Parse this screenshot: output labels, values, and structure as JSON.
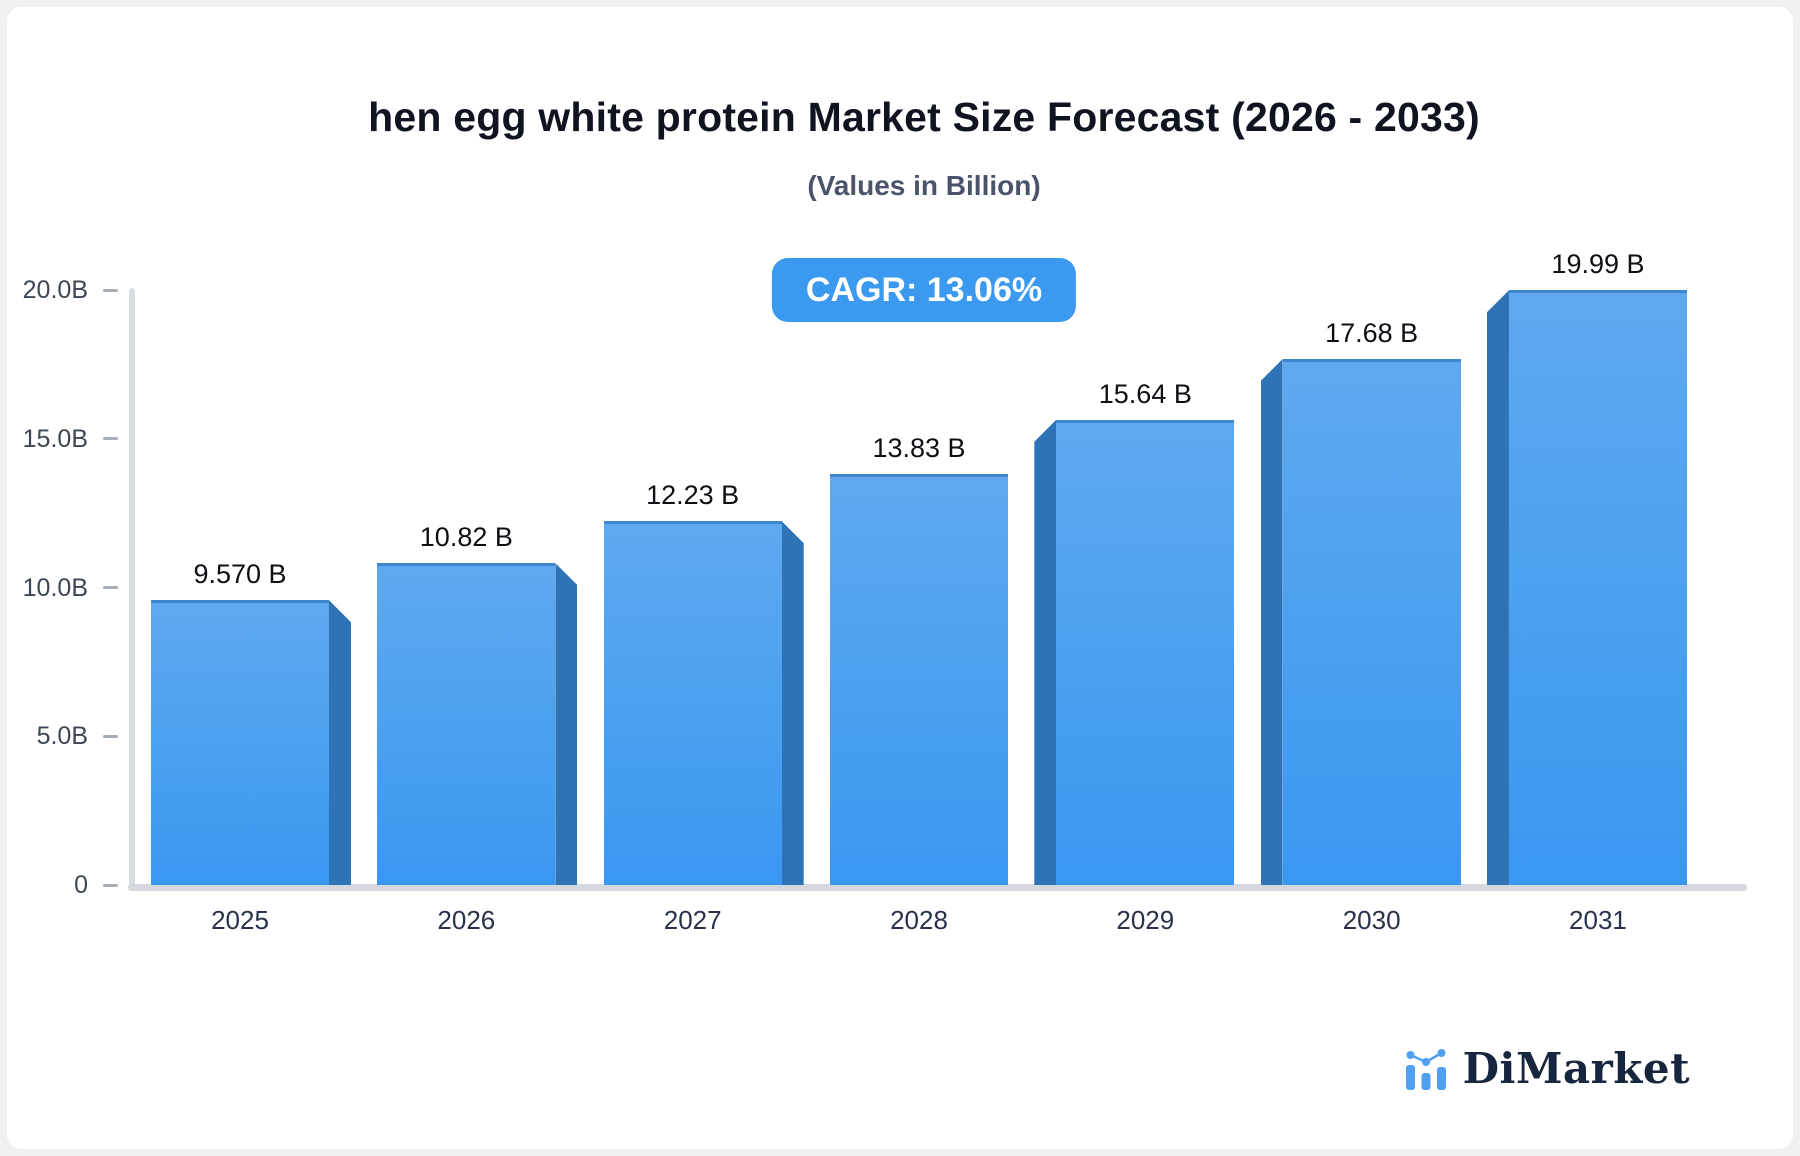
{
  "header": {
    "title": "hen egg white protein Market Size Forecast (2026 - 2033)",
    "subtitle": "(Values in Billion)"
  },
  "badge": {
    "label": "CAGR: 13.06%",
    "bg": "#3b9af0",
    "text_color": "#ffffff"
  },
  "chart_data": {
    "type": "bar",
    "title": "hen egg white protein Market Size Forecast (2026 - 2033)",
    "subtitle": "(Values in Billion)",
    "categories": [
      "2025",
      "2026",
      "2027",
      "2028",
      "2029",
      "2030",
      "2031"
    ],
    "values": [
      9.57,
      10.82,
      12.23,
      13.83,
      15.64,
      17.68,
      19.99
    ],
    "bar_labels": [
      "9.570 B",
      "10.82 B",
      "12.23 B",
      "13.83 B",
      "15.64 B",
      "17.68 B",
      "19.99 B"
    ],
    "ytick_values": [
      20,
      15,
      10,
      5,
      0
    ],
    "ytick_labels": [
      "20.0B",
      "15.0B",
      "10.0B",
      "5.0B",
      "0"
    ],
    "ylim": [
      0,
      20
    ],
    "xlabel": "",
    "ylabel": "",
    "grid": "off",
    "legend": "none",
    "colors": {
      "bar_face_top": "#5fa8ef",
      "bar_face_bottom": "#3a97f2",
      "bar_top_edge": "#3e86d0",
      "bar_side_3d": "#2d73b5",
      "axis": "#d5d8dd",
      "tick": "#a7adb6"
    }
  },
  "footer": {
    "brand": "DiMarket",
    "brand_color": "#17263f",
    "icon": "mini-bar-line-chart-icon",
    "icon_color": "#4f9ff3"
  }
}
